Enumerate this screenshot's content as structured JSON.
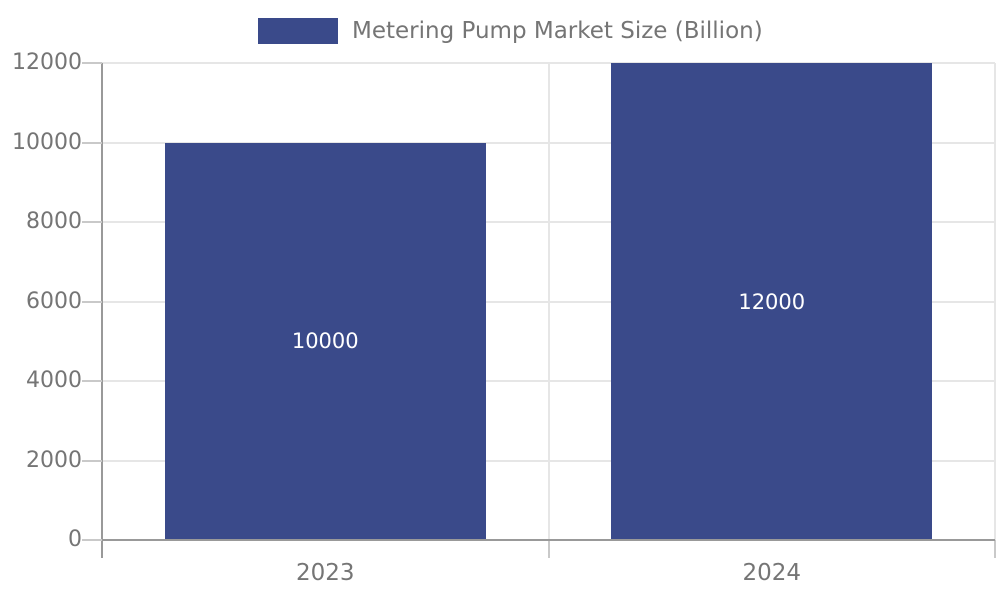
{
  "chart_data": {
    "type": "bar",
    "title": "Metering Pump Market Size (Billion)",
    "categories": [
      "2023",
      "2024"
    ],
    "series": [
      {
        "name": "Metering Pump Market Size (Billion)",
        "values": [
          10000,
          12000
        ]
      }
    ],
    "yticks": [
      0,
      2000,
      4000,
      6000,
      8000,
      10000,
      12000
    ],
    "ylim": [
      0,
      12000
    ],
    "grid": true,
    "legend_position": "top-center",
    "bar_value_labels": [
      "10000",
      "12000"
    ],
    "colors": {
      "bar": "#3a4a8a",
      "bar_label": "#ffffff",
      "text": "#757575",
      "axis": "#999999",
      "tick": "#c9c9c9",
      "grid": "#e6e6e6",
      "background": "#ffffff"
    }
  }
}
